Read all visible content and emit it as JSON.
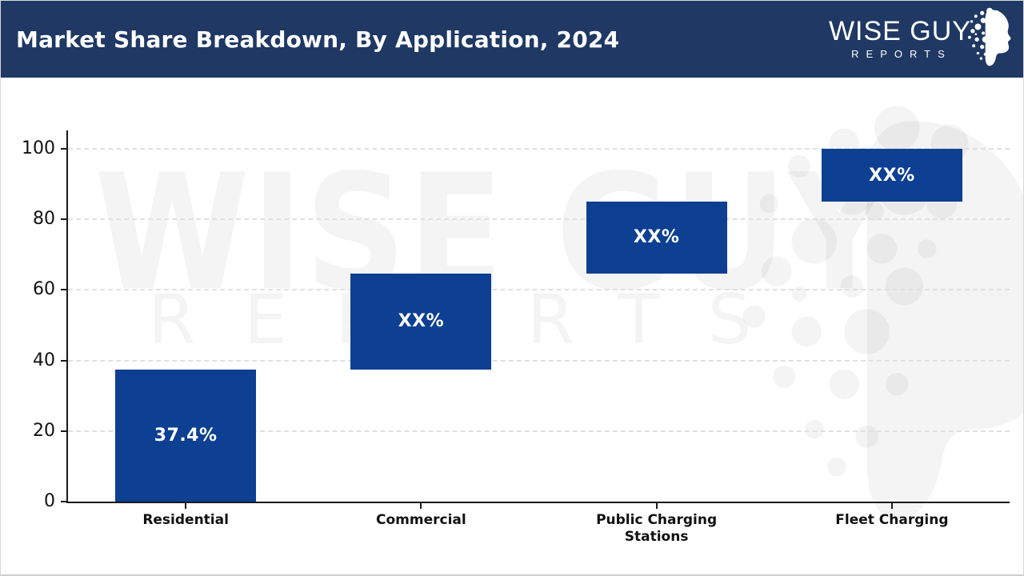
{
  "header": {
    "title": "Market Share Breakdown, By Application, 2024",
    "logo": {
      "brand_name": "WISE GUY",
      "brand_subtitle": "REPORTS"
    }
  },
  "watermark": {
    "line1": "WISE GUY",
    "line2": "REPORTS"
  },
  "chart_data": {
    "type": "bar",
    "variant": "waterfall-floating-bars",
    "title": "Market Share Breakdown, By Application, 2024",
    "categories": [
      "Residential",
      "Commercial",
      "Public Charging Stations",
      "Fleet Charging"
    ],
    "category_display_lines": [
      [
        "Residential"
      ],
      [
        "Commercial"
      ],
      [
        "Public Charging",
        "Stations"
      ],
      [
        "Fleet Charging"
      ]
    ],
    "series": [
      {
        "name": "Market share (%)",
        "segments": [
          {
            "category": "Residential",
            "start": 0,
            "end": 37.4,
            "label": "37.4%"
          },
          {
            "category": "Commercial",
            "start": 37.4,
            "end": 64.7,
            "label": "XX%"
          },
          {
            "category": "Public Charging Stations",
            "start": 64.7,
            "end": 85.0,
            "label": "XX%"
          },
          {
            "category": "Fleet Charging",
            "start": 85.0,
            "end": 100.0,
            "label": "XX%"
          }
        ]
      }
    ],
    "xlabel": "",
    "ylabel": "",
    "ylim": [
      0,
      100
    ],
    "yticks": [
      0,
      20,
      40,
      60,
      80,
      100
    ],
    "grid": {
      "horizontal": true,
      "style": "dashed"
    },
    "legend": "none"
  },
  "colors": {
    "header_bg": "#1f3864",
    "bar_fill": "#0d3f92",
    "bar_label": "#ffffff",
    "grid_color": "#e0e0e0",
    "axis_color": "#1a1a1a",
    "page_bg": "#ffffff"
  }
}
